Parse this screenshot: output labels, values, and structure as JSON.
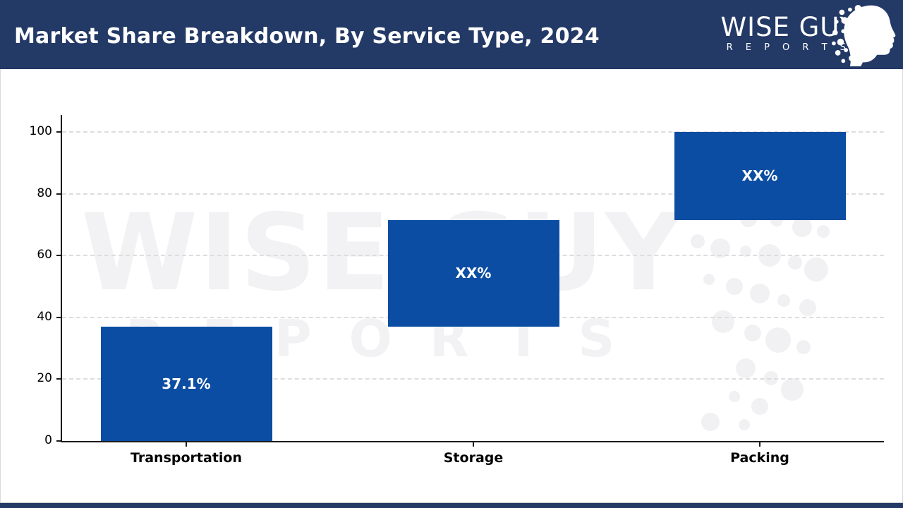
{
  "header": {
    "title": "Market Share Breakdown, By Service Type, 2024",
    "logo": {
      "line1": "WISE GUY",
      "line2": "R E P O R T S"
    }
  },
  "watermark": {
    "line1": "WISE GUY",
    "line2": "R E P O R T S"
  },
  "chart_data": {
    "type": "bar",
    "subtype": "waterfall",
    "title": "Market Share Breakdown, By Service Type, 2024",
    "categories": [
      "Transportation",
      "Storage",
      "Packing"
    ],
    "bars": [
      {
        "category": "Transportation",
        "start": 0,
        "end": 37.1,
        "label": "37.1%"
      },
      {
        "category": "Storage",
        "start": 37.1,
        "end": 71.5,
        "label": "XX%"
      },
      {
        "category": "Packing",
        "start": 71.5,
        "end": 100,
        "label": "XX%"
      }
    ],
    "xlabel": "",
    "ylabel": "",
    "ylim": [
      0,
      100
    ],
    "yticks": [
      0,
      20,
      40,
      60,
      80,
      100
    ],
    "grid": "horizontal-dashed",
    "legend": "none",
    "colors": {
      "bar": "#0b4da2",
      "header_bg": "#233966",
      "gridline": "#dddddd",
      "axis": "#1a1a1a",
      "bar_label_text": "#ffffff",
      "watermark": "#f2f2f4"
    }
  }
}
